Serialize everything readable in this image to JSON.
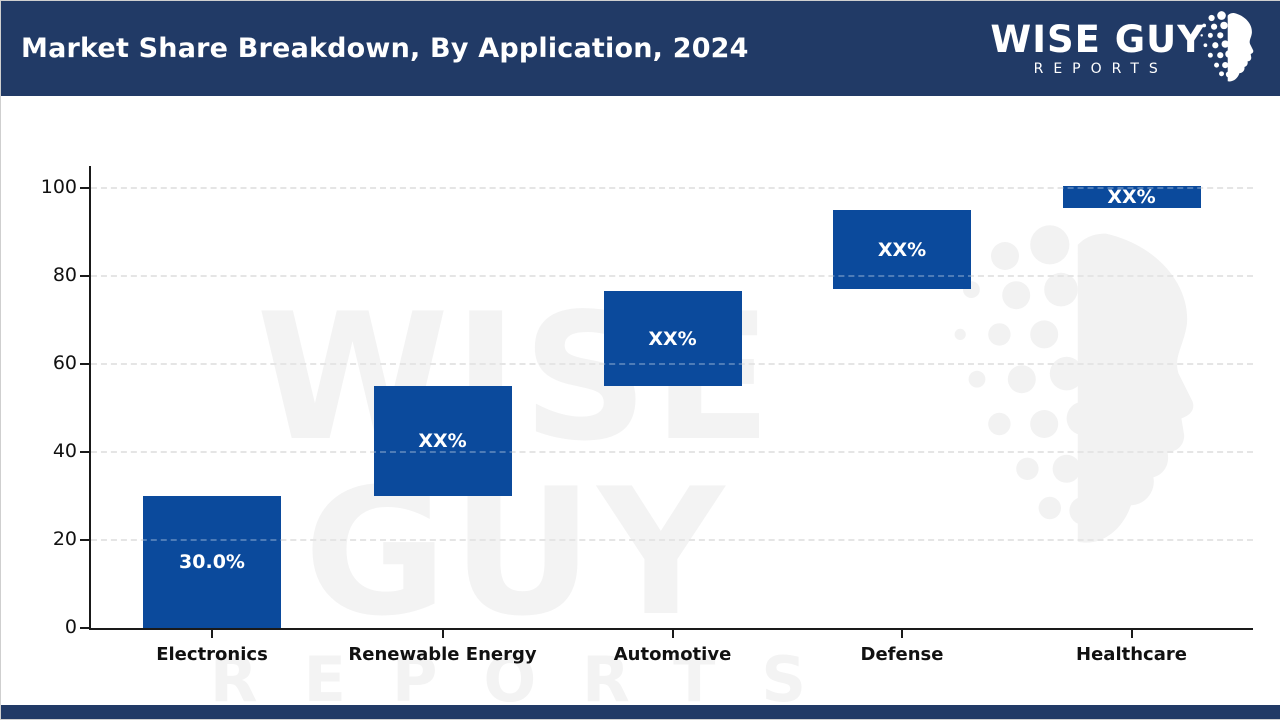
{
  "header": {
    "title": "Market Share Breakdown, By Application, 2024",
    "bg_color": "#213A66"
  },
  "logo": {
    "line1": "WISE GUY",
    "line2": "REPORTS"
  },
  "watermark": {
    "line1": "WISE GUY",
    "line2": "REPORTS"
  },
  "chart_data": {
    "type": "bar",
    "subtype": "waterfall-floating-bars",
    "title": "Market Share Breakdown, By Application, 2024",
    "categories": [
      "Electronics",
      "Renewable Energy",
      "Automotive",
      "Defense",
      "Healthcare"
    ],
    "segments": [
      {
        "category": "Electronics",
        "start": 0,
        "end": 30,
        "label": "30.0%"
      },
      {
        "category": "Renewable Energy",
        "start": 30,
        "end": 55,
        "label": "XX%"
      },
      {
        "category": "Automotive",
        "start": 55,
        "end": 76.5,
        "label": "XX%"
      },
      {
        "category": "Defense",
        "start": 77,
        "end": 95,
        "label": "XX%"
      },
      {
        "category": "Healthcare",
        "start": 95.5,
        "end": 100.5,
        "label": "XX%"
      }
    ],
    "y_ticks": [
      0,
      20,
      40,
      60,
      80,
      100
    ],
    "ylim": [
      0,
      105
    ],
    "xlabel": "",
    "ylabel": "",
    "grid": true,
    "grid_style": "dashed",
    "legend": "none",
    "bar_color": "#0B4A9C",
    "bar_label_color": "#ffffff",
    "grid_color": "#DCDCDC",
    "axis_color": "#1a1a1a"
  },
  "colors": {
    "header_bg": "#213A66",
    "footer_bg": "#213A66",
    "body_bg": "#ffffff",
    "watermark": "#f3f3f3"
  }
}
